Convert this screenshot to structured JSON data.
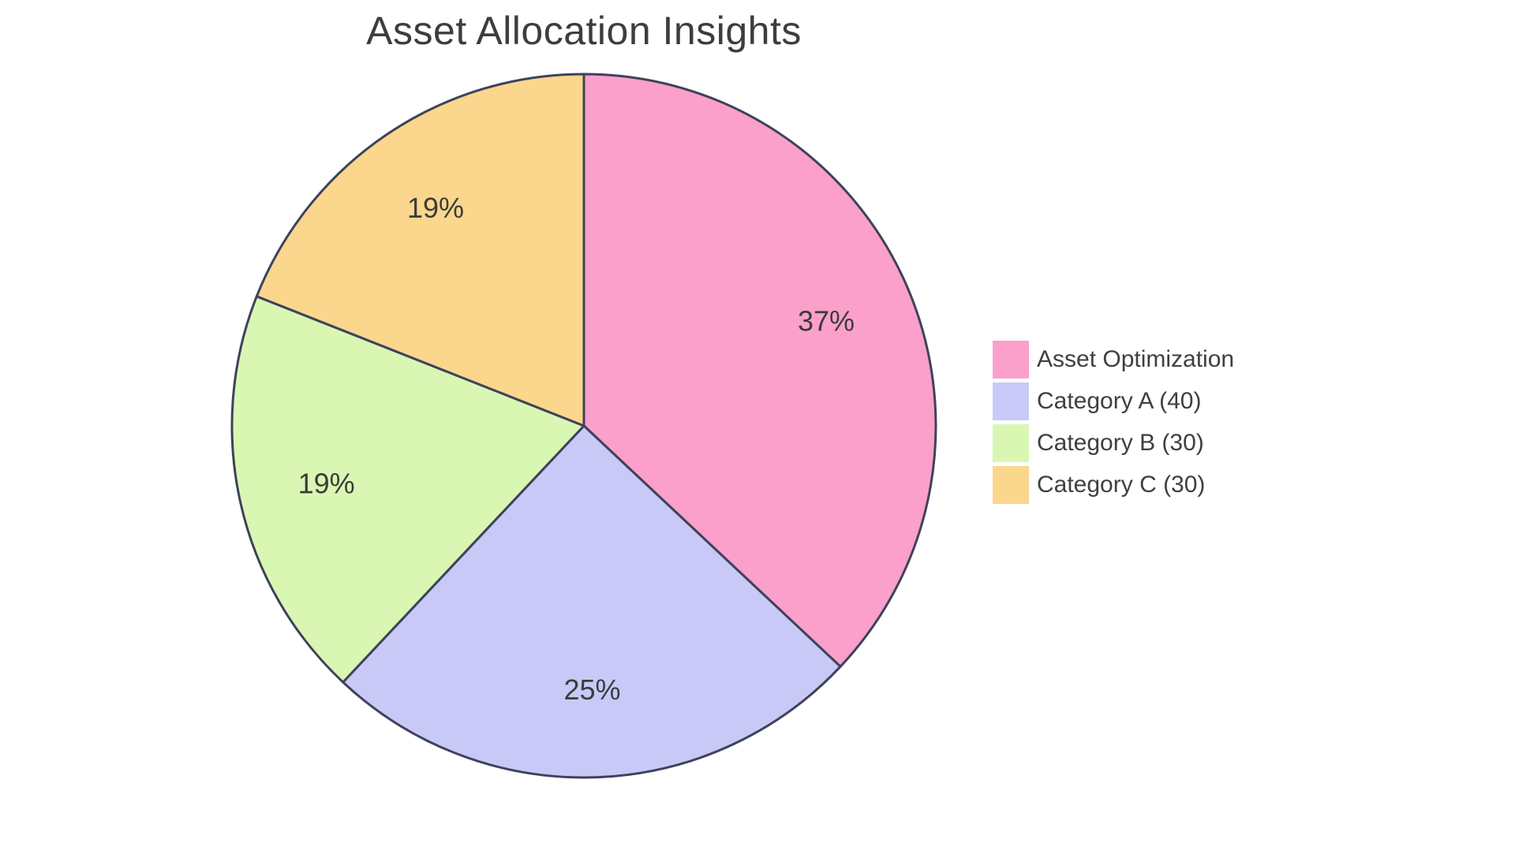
{
  "title": "Asset Allocation Insights",
  "chart_data": {
    "type": "pie",
    "title": "Asset Allocation Insights",
    "legend_position": "right",
    "start_angle": "12-oclock",
    "direction": "clockwise",
    "slices": [
      {
        "legend_label": "Asset Optimization",
        "percent": 37,
        "percent_label": "37%",
        "color": "#FAA0CA"
      },
      {
        "legend_label": "Category A (40)",
        "value": 40,
        "percent": 25,
        "percent_label": "25%",
        "color": "#C9C9F8"
      },
      {
        "legend_label": "Category B (30)",
        "value": 30,
        "percent": 19,
        "percent_label": "19%",
        "color": "#D9F7B3"
      },
      {
        "legend_label": "Category C (30)",
        "value": 30,
        "percent": 19,
        "percent_label": "19%",
        "color": "#FBD68D"
      }
    ],
    "stroke_color": "#3E425B",
    "percent_label_color": "#3B3B3B",
    "legend_text_color": "#3F3F3F",
    "background_color": "#FFFFFF"
  }
}
